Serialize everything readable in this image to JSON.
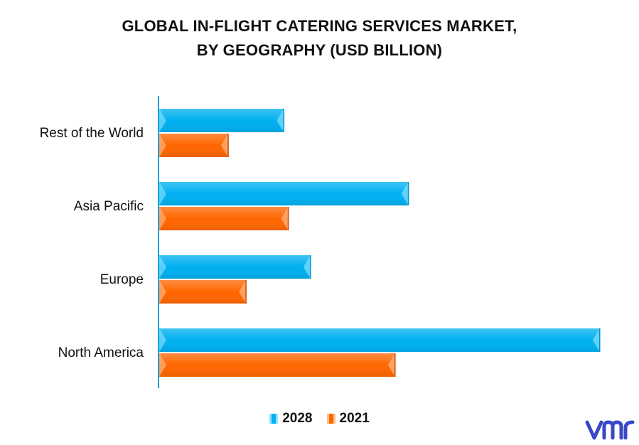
{
  "chart_data": {
    "type": "bar",
    "orientation": "horizontal",
    "title_lines": [
      "GLOBAL IN-FLIGHT CATERING SERVICES MARKET,",
      "BY GEOGRAPHY (USD BILLION)"
    ],
    "categories": [
      "Rest of the World",
      "Asia Pacific",
      "Europe",
      "North America"
    ],
    "series": [
      {
        "name": "2028",
        "color": "#00b0f0",
        "values": [
          2.8,
          5.6,
          3.4,
          9.9
        ]
      },
      {
        "name": "2021",
        "color": "#ff6600",
        "values": [
          1.55,
          2.9,
          1.95,
          5.3
        ]
      }
    ],
    "xlim": [
      0,
      10
    ],
    "grid": false,
    "legend_position": "bottom-center"
  },
  "logo": {
    "icon": "vmr-logo-icon",
    "color": "#3a47c9"
  }
}
